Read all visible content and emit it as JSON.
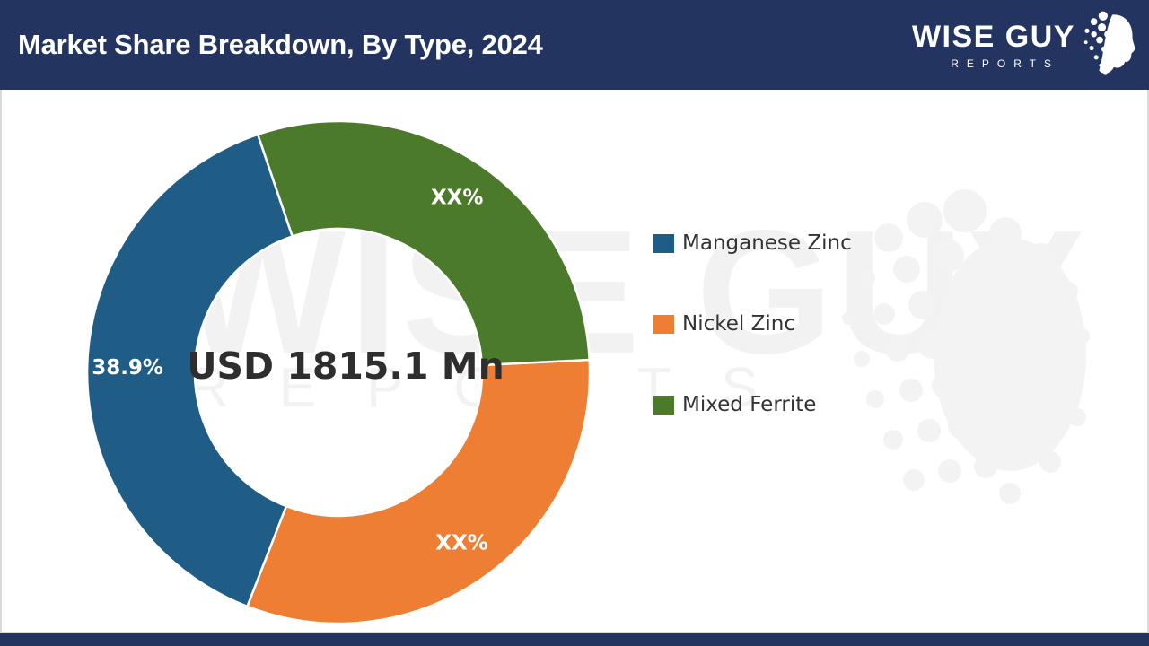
{
  "header": {
    "title": "Market Share Breakdown, By Type, 2024",
    "brand": {
      "line1": "WISE GUY",
      "line2": "REPORTS"
    }
  },
  "watermark": {
    "line1": "WISE GUY",
    "line2": "REPORTS"
  },
  "chart_data": {
    "type": "pie",
    "subtype": "donut",
    "title": "Market Share Breakdown, By Type, 2024",
    "center_label": "USD 1815.1 Mn",
    "start_angle_deg": 108.7,
    "direction": "counterclockwise",
    "inner_radius_ratio": 0.57,
    "slices": [
      {
        "name": "Manganese Zinc",
        "value_pct": 38.9,
        "label": "38.9%",
        "color": "#1f5c86"
      },
      {
        "name": "Nickel Zinc",
        "value_pct": 31.7,
        "label": "XX%",
        "color": "#ee7e33"
      },
      {
        "name": "Mixed Ferrite",
        "value_pct": 29.4,
        "label": "XX%",
        "color": "#4b7a2b"
      }
    ],
    "legend": {
      "position": "right",
      "items": [
        "Manganese Zinc",
        "Nickel Zinc",
        "Mixed Ferrite"
      ]
    }
  },
  "colors": {
    "header_bar": "#22345f",
    "footer_bar": "#22345f",
    "panel_border": "#d9d9d9",
    "center_text": "#2e2e2e",
    "legend_text": "#333333",
    "watermark": "#f2f2f2"
  }
}
